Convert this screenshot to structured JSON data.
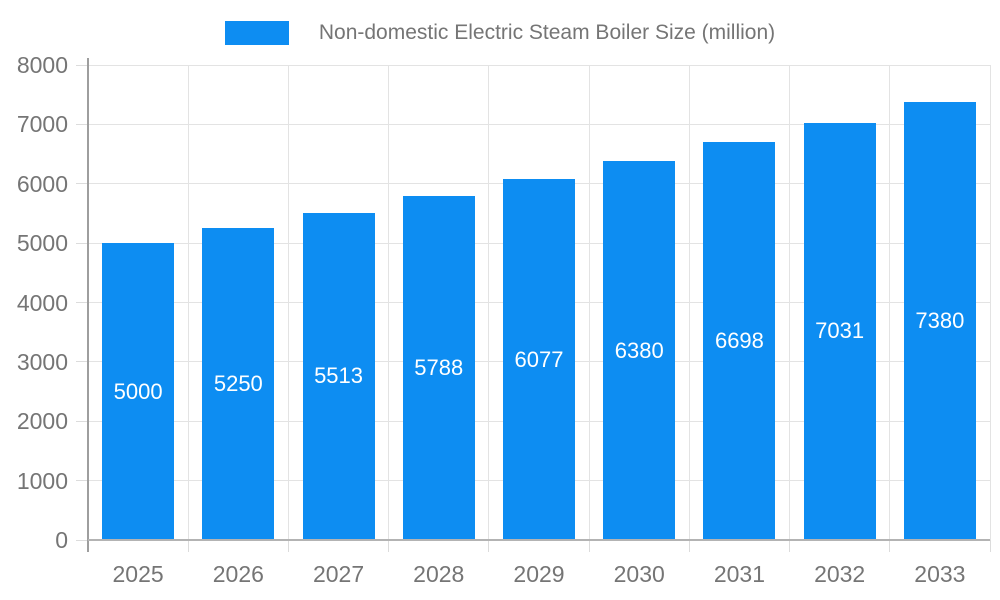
{
  "colors": {
    "bar": "#0d8df2",
    "bar_label": "#ffffff",
    "axis_text": "#757575",
    "grid": "#e3e3e3",
    "tick": "#dcdcdc",
    "y_axis_line": "#9e9e9e",
    "baseline": "#b3b3b3"
  },
  "chart_data": {
    "type": "bar",
    "title": "Non-domestic Electric Steam Boiler Size (million)",
    "categories": [
      "2025",
      "2026",
      "2027",
      "2028",
      "2029",
      "2030",
      "2031",
      "2032",
      "2033"
    ],
    "values": [
      5000,
      5250,
      5513,
      5788,
      6077,
      6380,
      6698,
      7031,
      7380
    ],
    "xlabel": "",
    "ylabel": "",
    "ylim": [
      0,
      8000
    ],
    "ytick_step": 1000,
    "yticks": [
      "0",
      "1000",
      "2000",
      "3000",
      "4000",
      "5000",
      "6000",
      "7000",
      "8000"
    ],
    "grid": true,
    "legend_position": "top",
    "bar_labels_visible": true
  }
}
